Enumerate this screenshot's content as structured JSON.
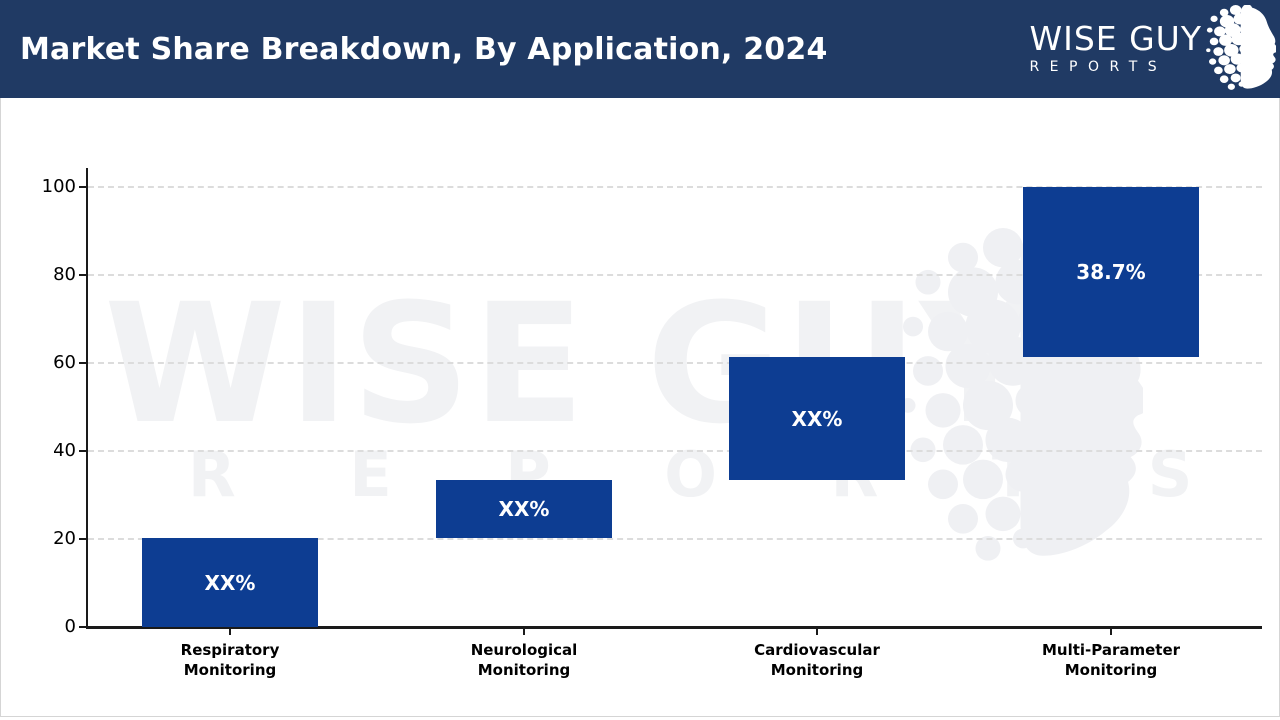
{
  "header": {
    "title": "Market Share Breakdown, By Application, 2024",
    "bg_color": "#203a64",
    "logo": {
      "line1": "WISE GUY",
      "line2": "REPORTS"
    }
  },
  "watermark": {
    "line1": "WISE GUY",
    "line2": "R E P O R T S"
  },
  "chart_data": {
    "type": "bar",
    "subtype": "waterfall",
    "title": "Market Share Breakdown, By Application, 2024",
    "xlabel": "",
    "ylabel": "",
    "ylim": [
      0,
      104
    ],
    "yticks": [
      0,
      20,
      40,
      60,
      80,
      100
    ],
    "grid": "horizontal-dashed",
    "legend": "none",
    "bar_color": "#0d3d92",
    "bar_label_color": "#ffffff",
    "categories": [
      "Respiratory\nMonitoring",
      "Neurological\nMonitoring",
      "Cardiovascular\nMonitoring",
      "Multi-Parameter\nMonitoring"
    ],
    "segments": [
      {
        "category": "Respiratory Monitoring",
        "start": 0,
        "end": 20.2,
        "value": 20.2,
        "label": "XX%"
      },
      {
        "category": "Neurological Monitoring",
        "start": 20.2,
        "end": 33.4,
        "value": 13.2,
        "label": "XX%"
      },
      {
        "category": "Cardiovascular Monitoring",
        "start": 33.4,
        "end": 61.3,
        "value": 27.9,
        "label": "XX%"
      },
      {
        "category": "Multi-Parameter Monitoring",
        "start": 61.3,
        "end": 100,
        "value": 38.7,
        "label": "38.7%"
      }
    ]
  }
}
